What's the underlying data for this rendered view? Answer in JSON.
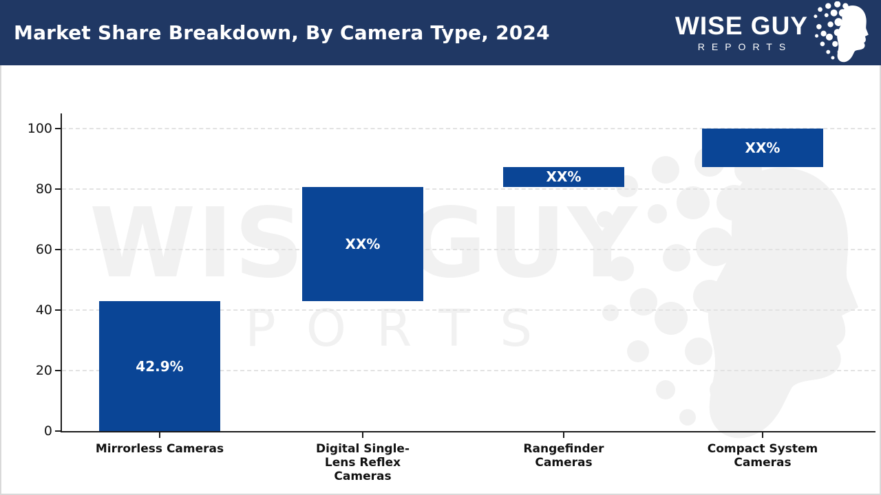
{
  "header": {
    "title": "Market Share Breakdown, By Camera Type, 2024",
    "bg_color": "#203864",
    "logo": {
      "line1": "WISE GUY",
      "line2": "REPORTS"
    }
  },
  "watermark": {
    "line1": "WISE GUY",
    "line2": "REPORTS"
  },
  "chart_data": {
    "type": "bar",
    "subtype": "waterfall",
    "title": "Market Share Breakdown, By Camera Type, 2024",
    "categories": [
      "Mirrorless Cameras",
      "Digital Single-\nLens Reflex\nCameras",
      "Rangefinder\nCameras",
      "Compact System\nCameras"
    ],
    "series": [
      {
        "name": "Market Share (%)",
        "segments": [
          {
            "category": "Mirrorless Cameras",
            "base": 0,
            "top": 42.9,
            "value": 42.9,
            "label": "42.9%"
          },
          {
            "category": "Digital Single-Lens Reflex Cameras",
            "base": 42.9,
            "top": 80.7,
            "value": 37.8,
            "label": "XX%"
          },
          {
            "category": "Rangefinder Cameras",
            "base": 80.7,
            "top": 87.3,
            "value": 6.6,
            "label": "XX%"
          },
          {
            "category": "Compact System Cameras",
            "base": 87.3,
            "top": 100,
            "value": 12.7,
            "label": "XX%"
          }
        ]
      }
    ],
    "ylim": [
      0,
      100
    ],
    "yticks": [
      0,
      20,
      40,
      60,
      80,
      100
    ],
    "grid": "horizontal-dashed",
    "legend": "none",
    "bar_color": "#0a4596",
    "bar_label_color": "#ffffff",
    "axis_color": "#1a1a1a",
    "grid_color": "#e2e2e2"
  }
}
